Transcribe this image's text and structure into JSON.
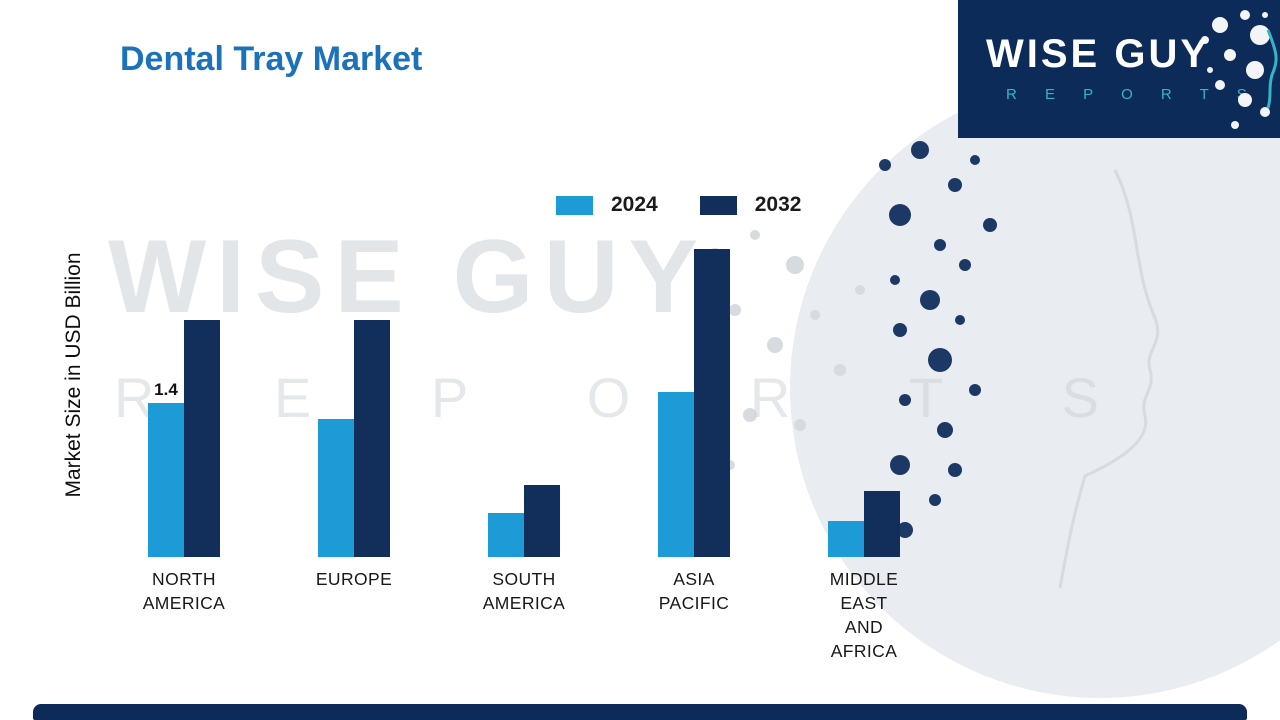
{
  "title": "Dental Tray Market",
  "y_axis_label": "Market Size in USD Billion",
  "watermark": {
    "line1": "WISE GUY",
    "line2": "R E P O R T S"
  },
  "logo": {
    "line1": "WISE GUY",
    "line2": "R E P O R T S"
  },
  "legend": [
    {
      "label": "2024",
      "color": "#1d9bd7"
    },
    {
      "label": "2032",
      "color": "#122f5c"
    }
  ],
  "colors": {
    "title_blue": "#1b72b8",
    "series_2024": "#1d9bd7",
    "series_2032": "#122f5c",
    "logo_navy": "#0c2b59",
    "logo_teal": "#35b4c9",
    "watermark_gray": "#ccd2d8"
  },
  "chart_data": {
    "type": "bar",
    "title": "Dental Tray Market",
    "ylabel": "Market Size in USD Billion",
    "xlabel": "",
    "ylim": [
      0,
      3
    ],
    "grid": false,
    "legend_position": "top",
    "categories": [
      "North America",
      "Europe",
      "South America",
      "Asia Pacific",
      "Middle East and Africa"
    ],
    "category_label_lines": [
      [
        "NORTH",
        "AMERICA"
      ],
      [
        "EUROPE"
      ],
      [
        "SOUTH",
        "AMERICA"
      ],
      [
        "ASIA",
        "PACIFIC"
      ],
      [
        "MIDDLE",
        "EAST",
        "AND",
        "AFRICA"
      ]
    ],
    "series": [
      {
        "name": "2024",
        "color": "#1d9bd7",
        "values": [
          1.4,
          1.25,
          0.4,
          1.5,
          0.33
        ]
      },
      {
        "name": "2032",
        "color": "#122f5c",
        "values": [
          2.15,
          2.15,
          0.65,
          2.8,
          0.6
        ]
      }
    ],
    "data_labels": [
      {
        "series": "2024",
        "category_index": 0,
        "text": "1.4"
      }
    ]
  }
}
